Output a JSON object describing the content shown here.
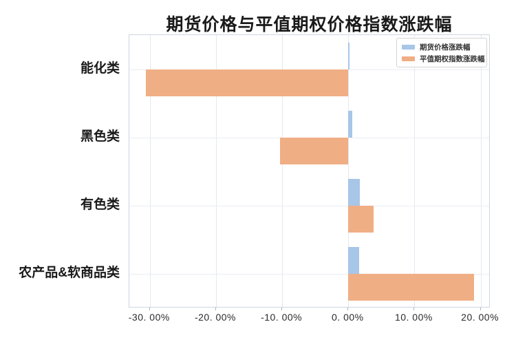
{
  "figure": {
    "title": "期货价格与平值期权价格指数涨跌幅",
    "background": "#ffffff"
  },
  "legend": {
    "items": [
      {
        "label": "期货价格涨跌幅",
        "color": "#a7c6e8"
      },
      {
        "label": "平值期权指数涨跌幅",
        "color": "#f0ae85"
      }
    ]
  },
  "chart_data": {
    "type": "bar",
    "orientation": "horizontal",
    "title": "期货价格与平值期权价格指数涨跌幅",
    "categories": [
      "能化类",
      "黑色类",
      "有色类",
      "农产品&软商品类"
    ],
    "series": [
      {
        "name": "期货价格涨跌幅",
        "color": "#a7c6e8",
        "values": [
          0.15,
          0.6,
          1.7,
          1.6
        ]
      },
      {
        "name": "平值期权指数涨跌幅",
        "color": "#f0ae85",
        "values": [
          -30.6,
          -10.3,
          3.8,
          19.0
        ]
      }
    ],
    "value_unit": "%",
    "xlim": [
      -33.1,
      21.5
    ],
    "x_tick_values": [
      -30,
      -20,
      -10,
      0,
      10,
      20
    ],
    "x_tick_labels": [
      "-30. 00%",
      "-20. 00%",
      "-10. 00%",
      "0. 00%",
      "10. 00%",
      "20. 00%"
    ],
    "grid": true,
    "legend_position": "upper-right",
    "axis_colors": {
      "grid": "#e4e8ef",
      "spine": "#ccd5e0",
      "tick_label": "#2b2b2b",
      "category_label": "#1a1a1a"
    }
  }
}
